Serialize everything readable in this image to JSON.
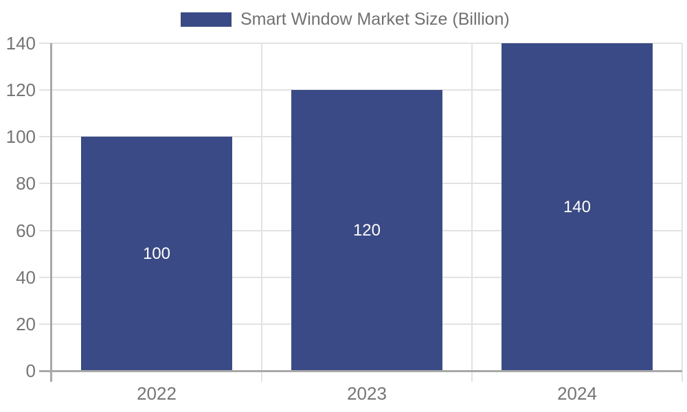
{
  "chart_data": {
    "type": "bar",
    "title": "Smart Window Market Size (Billion)",
    "categories": [
      "2022",
      "2023",
      "2024"
    ],
    "values": [
      100,
      120,
      140
    ],
    "bar_value_labels": [
      "100",
      "120",
      "140"
    ],
    "xlabel": "",
    "ylabel": "",
    "ylim": [
      0,
      140
    ],
    "yticks": [
      0,
      20,
      40,
      60,
      80,
      100,
      120,
      140
    ],
    "grid": true,
    "legend": {
      "position": "top-center",
      "entries": [
        "Smart Window Market Size (Billion)"
      ]
    },
    "colors": {
      "bar": "#3A4A86",
      "bar_value_label": "#FFFFFF",
      "axis_text": "#757575",
      "legend_text": "#717171",
      "gridline": "#E2E2E2",
      "axis_line": "#A8A8A8",
      "background": "#FFFFFF"
    }
  }
}
